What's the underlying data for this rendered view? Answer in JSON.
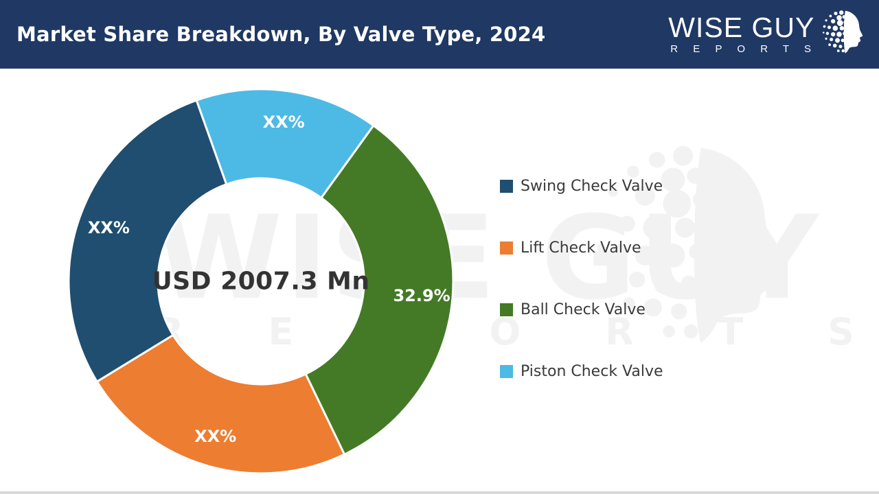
{
  "header": {
    "title": "Market Share Breakdown, By Valve Type, 2024",
    "bg_color": "#1F3864",
    "logo": {
      "line1": "WISE GUY",
      "line2": "R E P O R T S"
    }
  },
  "chart_data": {
    "type": "pie",
    "subtype": "donut",
    "title": "Market Share Breakdown, By Valve Type, 2024",
    "center_label": "USD 2007.3 Mn",
    "start_angle_deg": -19.6,
    "inner_radius_ratio": 0.536,
    "legend_position": "right",
    "slices": [
      {
        "name": "Piston Check Valve",
        "value": 15.4,
        "label": "XX%",
        "color": "#4DBAE5"
      },
      {
        "name": "Ball Check Valve",
        "value": 32.9,
        "label": "32.9%",
        "color": "#447A26"
      },
      {
        "name": "Lift Check Valve",
        "value": 23.4,
        "label": "XX%",
        "color": "#ED7D31"
      },
      {
        "name": "Swing Check Valve",
        "value": 28.3,
        "label": "XX%",
        "color": "#1F4E70"
      }
    ],
    "legend": [
      {
        "label": "Swing Check Valve",
        "color": "#1F4E70"
      },
      {
        "label": "Lift Check Valve",
        "color": "#ED7D31"
      },
      {
        "label": "Ball Check Valve",
        "color": "#447A26"
      },
      {
        "label": "Piston Check Valve",
        "color": "#4DBAE5"
      }
    ]
  },
  "watermark": {
    "line1": "WISE GUY",
    "line2": "R E P O R T S",
    "color": "#f2f2f2"
  },
  "page": {
    "bottom_line_color": "#d9d9d9"
  }
}
